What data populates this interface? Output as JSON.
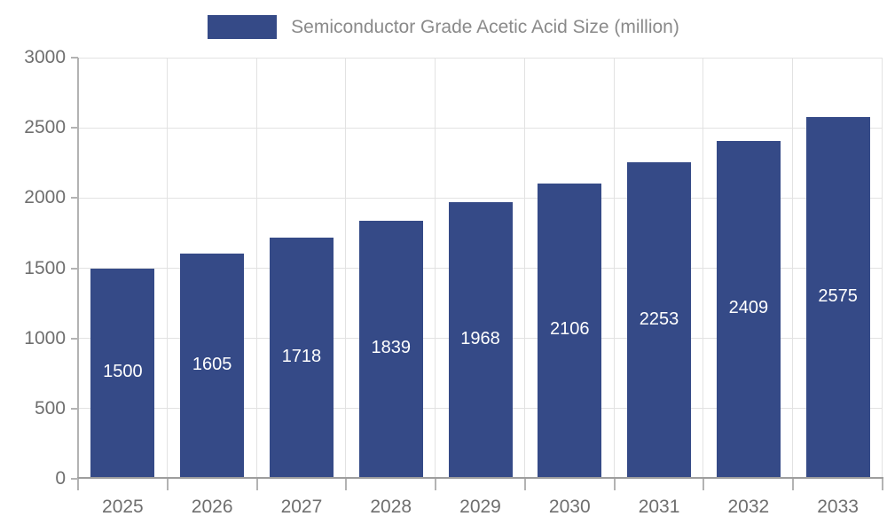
{
  "chart_data": {
    "type": "bar",
    "title": "Semiconductor Grade Acetic Acid Size (million)",
    "categories": [
      "2025",
      "2026",
      "2027",
      "2028",
      "2029",
      "2030",
      "2031",
      "2032",
      "2033"
    ],
    "values": [
      1500,
      1605,
      1718,
      1839,
      1968,
      2106,
      2253,
      2409,
      2575
    ],
    "xlabel": "",
    "ylabel": "",
    "ylim": [
      0,
      3000
    ],
    "yticks": [
      0,
      500,
      1000,
      1500,
      2000,
      2500,
      3000
    ],
    "grid": true,
    "legend_position": "top",
    "value_labels": "inside-center"
  },
  "colors": {
    "bar": "#354a87",
    "gridline": "#e2e2e2",
    "axis": "#b3b3b3",
    "tick_label": "#6f6f6f",
    "legend_label": "#8a8a8a",
    "value_label": "#ffffff",
    "background": "#ffffff"
  }
}
